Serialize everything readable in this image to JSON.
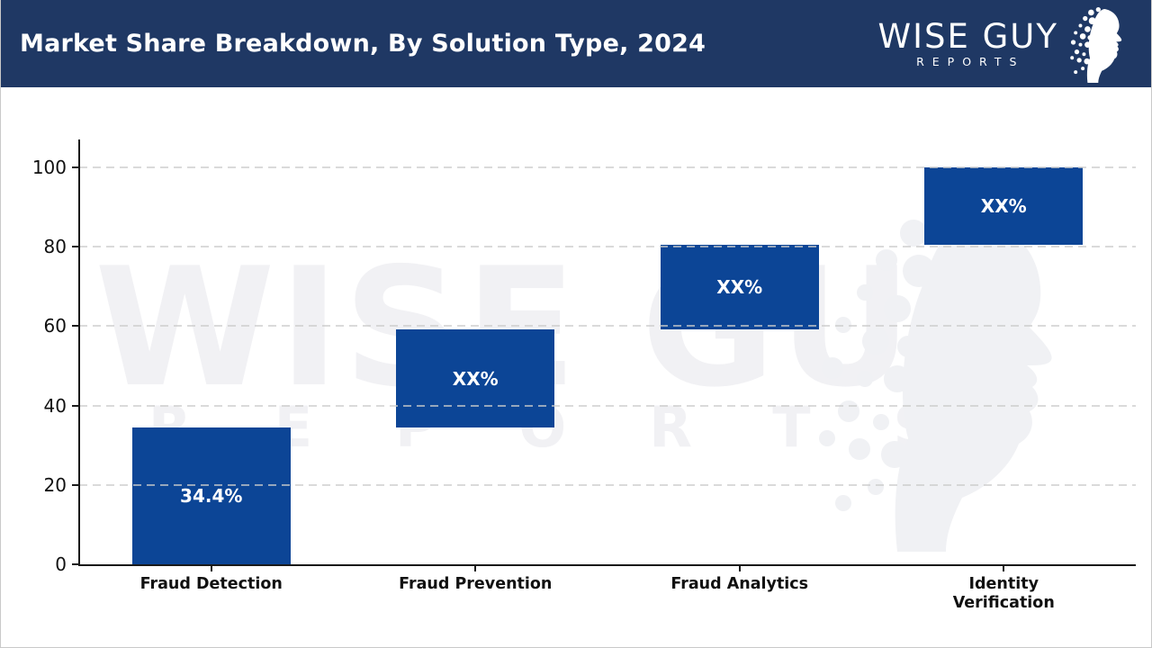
{
  "header": {
    "title": "Market Share Breakdown, By Solution Type, 2024",
    "bg_color": "#1f3864",
    "logo": {
      "line1": "WISE GUY",
      "line2": "REPORTS"
    }
  },
  "watermark": {
    "line1": "WISE GUY",
    "line2": "REPORTS"
  },
  "chart_data": {
    "type": "bar",
    "subtype": "waterfall",
    "title": "Market Share Breakdown, By Solution Type, 2024",
    "xlabel": "",
    "ylabel": "",
    "categories": [
      "Fraud Detection",
      "Fraud Prevention",
      "Fraud Analytics",
      "Identity Verification"
    ],
    "segments": [
      {
        "category": "Fraud Detection",
        "start": 0,
        "end": 34.4,
        "label": "34.4%"
      },
      {
        "category": "Fraud Prevention",
        "start": 34.4,
        "end": 59.2,
        "label": "XX%"
      },
      {
        "category": "Fraud Analytics",
        "start": 59.2,
        "end": 80.5,
        "label": "XX%"
      },
      {
        "category": "Identity Verification",
        "start": 80.5,
        "end": 100,
        "label": "XX%"
      }
    ],
    "yticks": [
      0,
      20,
      40,
      60,
      80,
      100
    ],
    "ylim": [
      0,
      107
    ],
    "bar_color": "#0c4596",
    "grid": "dashed-horizontal-over-bars",
    "legend": "none"
  }
}
